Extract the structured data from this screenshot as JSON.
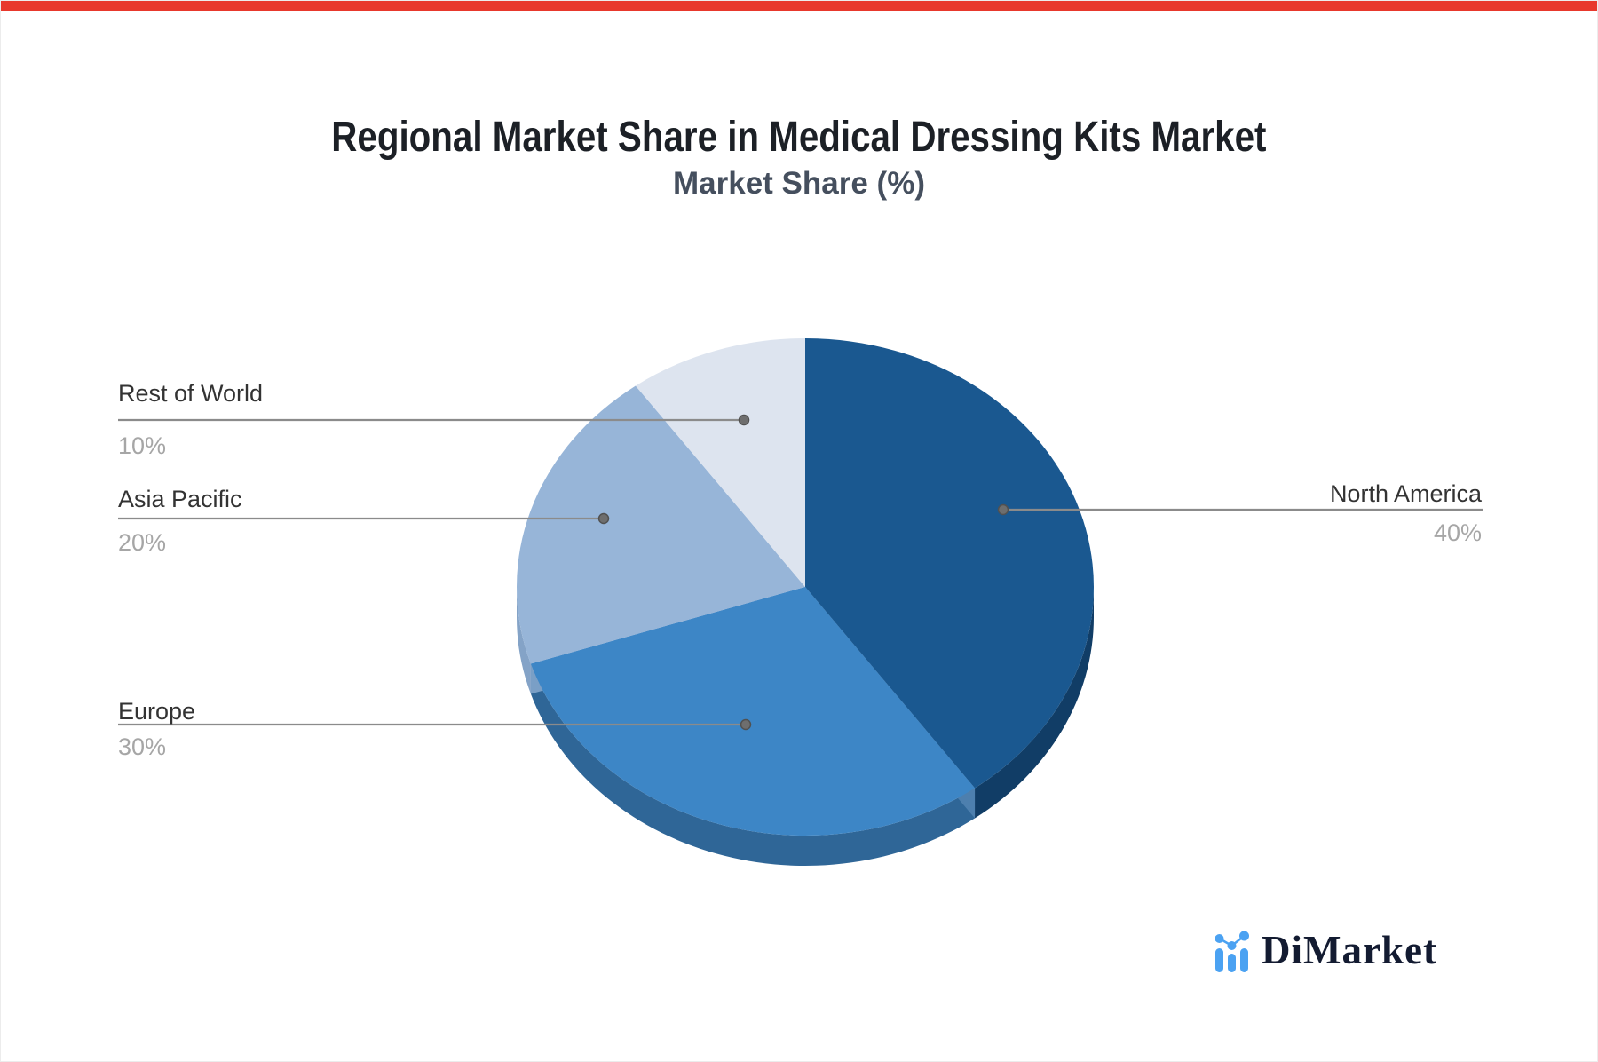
{
  "page": {
    "background": "#ffffff",
    "colors": {
      "accent_bar": "#e8382c",
      "title_text": "#1c2026",
      "subtitle_text": "#454f5e",
      "label_text": "#333333",
      "value_text": "#a6a6a6",
      "leader_line": "#8b8b8b",
      "leader_dot": "#6e6e6e"
    }
  },
  "header": {
    "title": "Regional Market Share in Medical Dressing Kits Market",
    "subtitle": "Market Share (%)"
  },
  "chart_data": {
    "type": "pie",
    "style": "3d",
    "title": "Regional Market Share in Medical Dressing Kits Market",
    "subtitle": "Market Share (%)",
    "unit": "%",
    "start_angle_deg": 0,
    "direction": "clockwise",
    "legend": "callout-labels",
    "categories": [
      "North America",
      "Europe",
      "Asia Pacific",
      "Rest of World"
    ],
    "values": [
      40,
      30,
      20,
      10
    ],
    "colors": [
      "#1a5890",
      "#3d86c6",
      "#97b5d8",
      "#dde4ef"
    ]
  },
  "slices": [
    {
      "key": "north-america",
      "label": "North America",
      "value": 40,
      "value_label": "40%",
      "color": "#1a5890",
      "side_color": "#113d66"
    },
    {
      "key": "europe",
      "label": "Europe",
      "value": 30,
      "value_label": "30%",
      "color": "#3d86c6",
      "side_color": "#2f6697"
    },
    {
      "key": "asia-pacific",
      "label": "Asia Pacific",
      "value": 20,
      "value_label": "20%",
      "color": "#97b5d8",
      "side_color": "#84a3c7"
    },
    {
      "key": "rest-of-world",
      "label": "Rest of World",
      "value": 10,
      "value_label": "10%",
      "color": "#dde4ef",
      "side_color": "#c9d3e2"
    }
  ],
  "logo": {
    "text": "DiMarket",
    "icon": "bar-line-chart-icon",
    "icon_color": "#4ba2f2",
    "text_color": "#131b31"
  }
}
